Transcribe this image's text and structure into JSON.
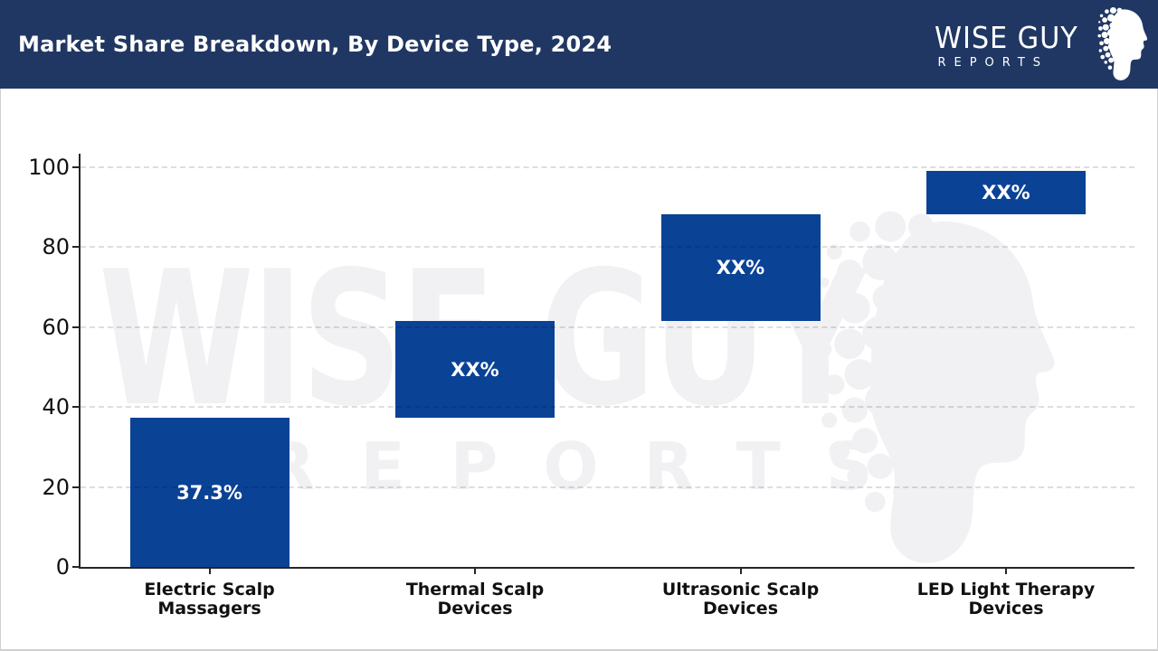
{
  "header": {
    "title": "Market Share Breakdown, By Device Type, 2024",
    "logo": {
      "wordmark": "WISE GUY",
      "subtext": "REPORTS"
    }
  },
  "watermark": {
    "wordmark": "WISE GUY",
    "subtext": "REPORTS"
  },
  "chart_data": {
    "type": "bar",
    "subtype": "floating-waterfall",
    "title": "Market Share Breakdown, By Device Type, 2024",
    "categories": [
      "Electric Scalp Massagers",
      "Thermal Scalp Devices",
      "Ultrasonic Scalp Devices",
      "LED Light Therapy Devices"
    ],
    "category_lines": [
      [
        "Electric Scalp",
        "Massagers"
      ],
      [
        "Thermal Scalp",
        "Devices"
      ],
      [
        "Ultrasonic Scalp",
        "Devices"
      ],
      [
        "LED Light Therapy",
        "Devices"
      ]
    ],
    "segments": [
      {
        "category": "Electric Scalp Massagers",
        "start": 0,
        "end": 37.3,
        "label": "37.3%"
      },
      {
        "category": "Thermal Scalp Devices",
        "start": 37.3,
        "end": 61.5,
        "label": "XX%"
      },
      {
        "category": "Ultrasonic Scalp Devices",
        "start": 61.5,
        "end": 88.2,
        "label": "XX%"
      },
      {
        "category": "LED Light Therapy Devices",
        "start": 88.2,
        "end": 99.1,
        "label": "XX%"
      }
    ],
    "xlabel": "",
    "ylabel": "",
    "yticks": [
      0,
      20,
      40,
      60,
      80,
      100
    ],
    "ylim": [
      0,
      103.5
    ],
    "grid": "horizontal-dashed",
    "legend": "none"
  },
  "colors": {
    "header_bg": "#213763",
    "bar": "#0a4296",
    "bar_label": "#ffffff",
    "axis": "#262626",
    "tick_text": "#111111",
    "grid": "rgba(0,0,0,0.13)",
    "watermark": "#f1f1f4",
    "frame_border": "#cfcfcf",
    "background": "#ffffff"
  }
}
